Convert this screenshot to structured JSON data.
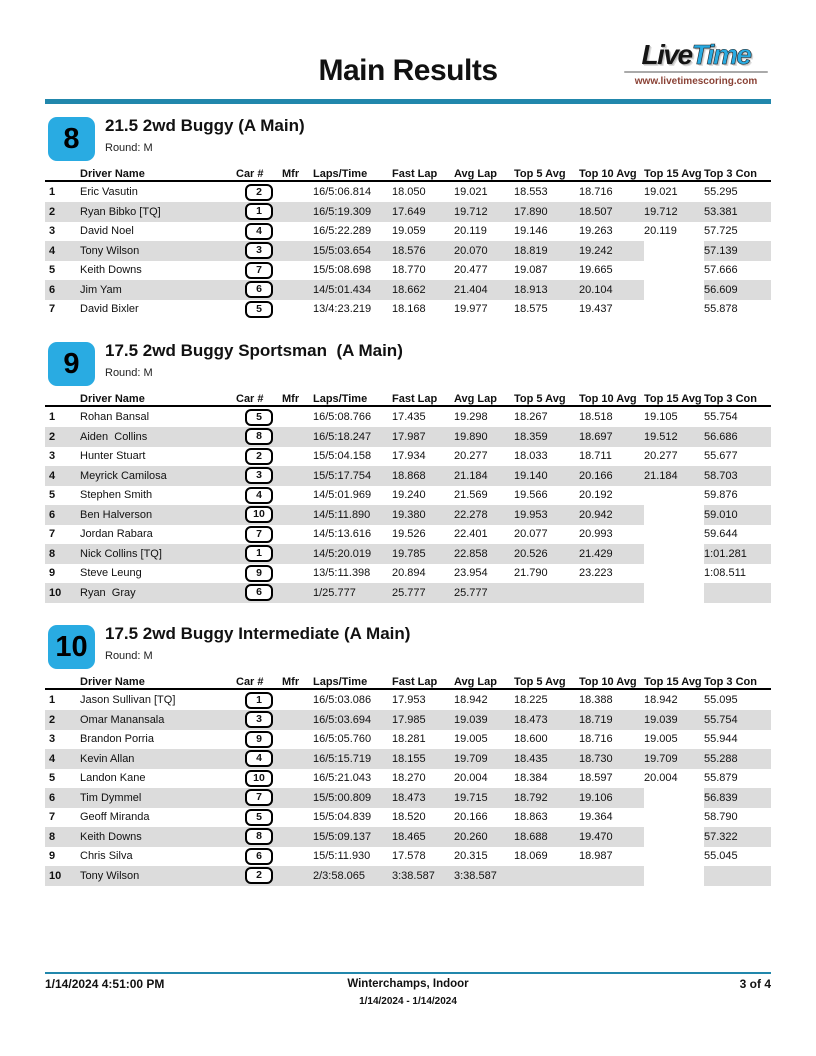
{
  "page": {
    "title": "Main Results",
    "logo": {
      "live": "Live",
      "time": "Time",
      "url": "www.livetimescoring.com"
    }
  },
  "colors": {
    "accent_cyan": "#29ABE2",
    "rule_teal": "#2187AC",
    "row_alt_gray": "#DCDCDC",
    "logo_url_brown": "#8a4236"
  },
  "columns": [
    "Driver Name",
    "Car #",
    "Mfr",
    "Laps/Time",
    "Fast Lap",
    "Avg Lap",
    "Top 5 Avg",
    "Top 10 Avg",
    "Top 15 Avg",
    "Top 3 Con"
  ],
  "races": [
    {
      "number": "8",
      "title": "21.5 2wd Buggy (A Main)",
      "round": "Round: M",
      "rows": [
        {
          "pos": "1",
          "driver": "Eric Vasutin",
          "car": "2",
          "mfr": "",
          "laps_time": "16/5:06.814",
          "fast_lap": "18.050",
          "avg_lap": "19.021",
          "top5": "18.553",
          "top10": "18.716",
          "top15": "19.021",
          "top3con": "55.295"
        },
        {
          "pos": "2",
          "driver": "Ryan Bibko [TQ]",
          "car": "1",
          "mfr": "",
          "laps_time": "16/5:19.309",
          "fast_lap": "17.649",
          "avg_lap": "19.712",
          "top5": "17.890",
          "top10": "18.507",
          "top15": "19.712",
          "top3con": "53.381"
        },
        {
          "pos": "3",
          "driver": "David Noel",
          "car": "4",
          "mfr": "",
          "laps_time": "16/5:22.289",
          "fast_lap": "19.059",
          "avg_lap": "20.119",
          "top5": "19.146",
          "top10": "19.263",
          "top15": "20.119",
          "top3con": "57.725"
        },
        {
          "pos": "4",
          "driver": "Tony Wilson",
          "car": "3",
          "mfr": "",
          "laps_time": "15/5:03.654",
          "fast_lap": "18.576",
          "avg_lap": "20.070",
          "top5": "18.819",
          "top10": "19.242",
          "top15": "",
          "top3con": "57.139"
        },
        {
          "pos": "5",
          "driver": "Keith Downs",
          "car": "7",
          "mfr": "",
          "laps_time": "15/5:08.698",
          "fast_lap": "18.770",
          "avg_lap": "20.477",
          "top5": "19.087",
          "top10": "19.665",
          "top15": "",
          "top3con": "57.666"
        },
        {
          "pos": "6",
          "driver": "Jim Yam",
          "car": "6",
          "mfr": "",
          "laps_time": "14/5:01.434",
          "fast_lap": "18.662",
          "avg_lap": "21.404",
          "top5": "18.913",
          "top10": "20.104",
          "top15": "",
          "top3con": "56.609"
        },
        {
          "pos": "7",
          "driver": "David Bixler",
          "car": "5",
          "mfr": "",
          "laps_time": "13/4:23.219",
          "fast_lap": "18.168",
          "avg_lap": "19.977",
          "top5": "18.575",
          "top10": "19.437",
          "top15": "",
          "top3con": "55.878"
        }
      ]
    },
    {
      "number": "9",
      "title": "17.5 2wd Buggy Sportsman  (A Main)",
      "round": "Round: M",
      "rows": [
        {
          "pos": "1",
          "driver": "Rohan Bansal",
          "car": "5",
          "mfr": "",
          "laps_time": "16/5:08.766",
          "fast_lap": "17.435",
          "avg_lap": "19.298",
          "top5": "18.267",
          "top10": "18.518",
          "top15": "19.105",
          "top3con": "55.754"
        },
        {
          "pos": "2",
          "driver": "Aiden  Collins",
          "car": "8",
          "mfr": "",
          "laps_time": "16/5:18.247",
          "fast_lap": "17.987",
          "avg_lap": "19.890",
          "top5": "18.359",
          "top10": "18.697",
          "top15": "19.512",
          "top3con": "56.686"
        },
        {
          "pos": "3",
          "driver": "Hunter Stuart",
          "car": "2",
          "mfr": "",
          "laps_time": "15/5:04.158",
          "fast_lap": "17.934",
          "avg_lap": "20.277",
          "top5": "18.033",
          "top10": "18.711",
          "top15": "20.277",
          "top3con": "55.677"
        },
        {
          "pos": "4",
          "driver": "Meyrick Camilosa",
          "car": "3",
          "mfr": "",
          "laps_time": "15/5:17.754",
          "fast_lap": "18.868",
          "avg_lap": "21.184",
          "top5": "19.140",
          "top10": "20.166",
          "top15": "21.184",
          "top3con": "58.703"
        },
        {
          "pos": "5",
          "driver": "Stephen Smith",
          "car": "4",
          "mfr": "",
          "laps_time": "14/5:01.969",
          "fast_lap": "19.240",
          "avg_lap": "21.569",
          "top5": "19.566",
          "top10": "20.192",
          "top15": "",
          "top3con": "59.876"
        },
        {
          "pos": "6",
          "driver": "Ben Halverson",
          "car": "10",
          "mfr": "",
          "laps_time": "14/5:11.890",
          "fast_lap": "19.380",
          "avg_lap": "22.278",
          "top5": "19.953",
          "top10": "20.942",
          "top15": "",
          "top3con": "59.010"
        },
        {
          "pos": "7",
          "driver": "Jordan Rabara",
          "car": "7",
          "mfr": "",
          "laps_time": "14/5:13.616",
          "fast_lap": "19.526",
          "avg_lap": "22.401",
          "top5": "20.077",
          "top10": "20.993",
          "top15": "",
          "top3con": "59.644"
        },
        {
          "pos": "8",
          "driver": "Nick Collins [TQ]",
          "car": "1",
          "mfr": "",
          "laps_time": "14/5:20.019",
          "fast_lap": "19.785",
          "avg_lap": "22.858",
          "top5": "20.526",
          "top10": "21.429",
          "top15": "",
          "top3con": "1:01.281"
        },
        {
          "pos": "9",
          "driver": "Steve Leung",
          "car": "9",
          "mfr": "",
          "laps_time": "13/5:11.398",
          "fast_lap": "20.894",
          "avg_lap": "23.954",
          "top5": "21.790",
          "top10": "23.223",
          "top15": "",
          "top3con": "1:08.511"
        },
        {
          "pos": "10",
          "driver": "Ryan  Gray",
          "car": "6",
          "mfr": "",
          "laps_time": "1/25.777",
          "fast_lap": "25.777",
          "avg_lap": "25.777",
          "top5": "",
          "top10": "",
          "top15": "",
          "top3con": ""
        }
      ]
    },
    {
      "number": "10",
      "title": "17.5 2wd Buggy Intermediate (A Main)",
      "round": "Round: M",
      "rows": [
        {
          "pos": "1",
          "driver": "Jason Sullivan [TQ]",
          "car": "1",
          "mfr": "",
          "laps_time": "16/5:03.086",
          "fast_lap": "17.953",
          "avg_lap": "18.942",
          "top5": "18.225",
          "top10": "18.388",
          "top15": "18.942",
          "top3con": "55.095"
        },
        {
          "pos": "2",
          "driver": "Omar Manansala",
          "car": "3",
          "mfr": "",
          "laps_time": "16/5:03.694",
          "fast_lap": "17.985",
          "avg_lap": "19.039",
          "top5": "18.473",
          "top10": "18.719",
          "top15": "19.039",
          "top3con": "55.754"
        },
        {
          "pos": "3",
          "driver": "Brandon Porria",
          "car": "9",
          "mfr": "",
          "laps_time": "16/5:05.760",
          "fast_lap": "18.281",
          "avg_lap": "19.005",
          "top5": "18.600",
          "top10": "18.716",
          "top15": "19.005",
          "top3con": "55.944"
        },
        {
          "pos": "4",
          "driver": "Kevin Allan",
          "car": "4",
          "mfr": "",
          "laps_time": "16/5:15.719",
          "fast_lap": "18.155",
          "avg_lap": "19.709",
          "top5": "18.435",
          "top10": "18.730",
          "top15": "19.709",
          "top3con": "55.288"
        },
        {
          "pos": "5",
          "driver": "Landon Kane",
          "car": "10",
          "mfr": "",
          "laps_time": "16/5:21.043",
          "fast_lap": "18.270",
          "avg_lap": "20.004",
          "top5": "18.384",
          "top10": "18.597",
          "top15": "20.004",
          "top3con": "55.879"
        },
        {
          "pos": "6",
          "driver": "Tim Dymmel",
          "car": "7",
          "mfr": "",
          "laps_time": "15/5:00.809",
          "fast_lap": "18.473",
          "avg_lap": "19.715",
          "top5": "18.792",
          "top10": "19.106",
          "top15": "",
          "top3con": "56.839"
        },
        {
          "pos": "7",
          "driver": "Geoff Miranda",
          "car": "5",
          "mfr": "",
          "laps_time": "15/5:04.839",
          "fast_lap": "18.520",
          "avg_lap": "20.166",
          "top5": "18.863",
          "top10": "19.364",
          "top15": "",
          "top3con": "58.790"
        },
        {
          "pos": "8",
          "driver": "Keith Downs",
          "car": "8",
          "mfr": "",
          "laps_time": "15/5:09.137",
          "fast_lap": "18.465",
          "avg_lap": "20.260",
          "top5": "18.688",
          "top10": "19.470",
          "top15": "",
          "top3con": "57.322"
        },
        {
          "pos": "9",
          "driver": "Chris Silva",
          "car": "6",
          "mfr": "",
          "laps_time": "15/5:11.930",
          "fast_lap": "17.578",
          "avg_lap": "20.315",
          "top5": "18.069",
          "top10": "18.987",
          "top15": "",
          "top3con": "55.045"
        },
        {
          "pos": "10",
          "driver": "Tony Wilson",
          "car": "2",
          "mfr": "",
          "laps_time": "2/3:58.065",
          "fast_lap": "3:38.587",
          "avg_lap": "3:38.587",
          "top5": "",
          "top10": "",
          "top15": "",
          "top3con": ""
        }
      ]
    }
  ],
  "footer": {
    "printed": "1/14/2024 4:51:00 PM",
    "event": "Winterchamps, Indoor",
    "event_dates": "1/14/2024 - 1/14/2024",
    "page": "3 of 4"
  }
}
